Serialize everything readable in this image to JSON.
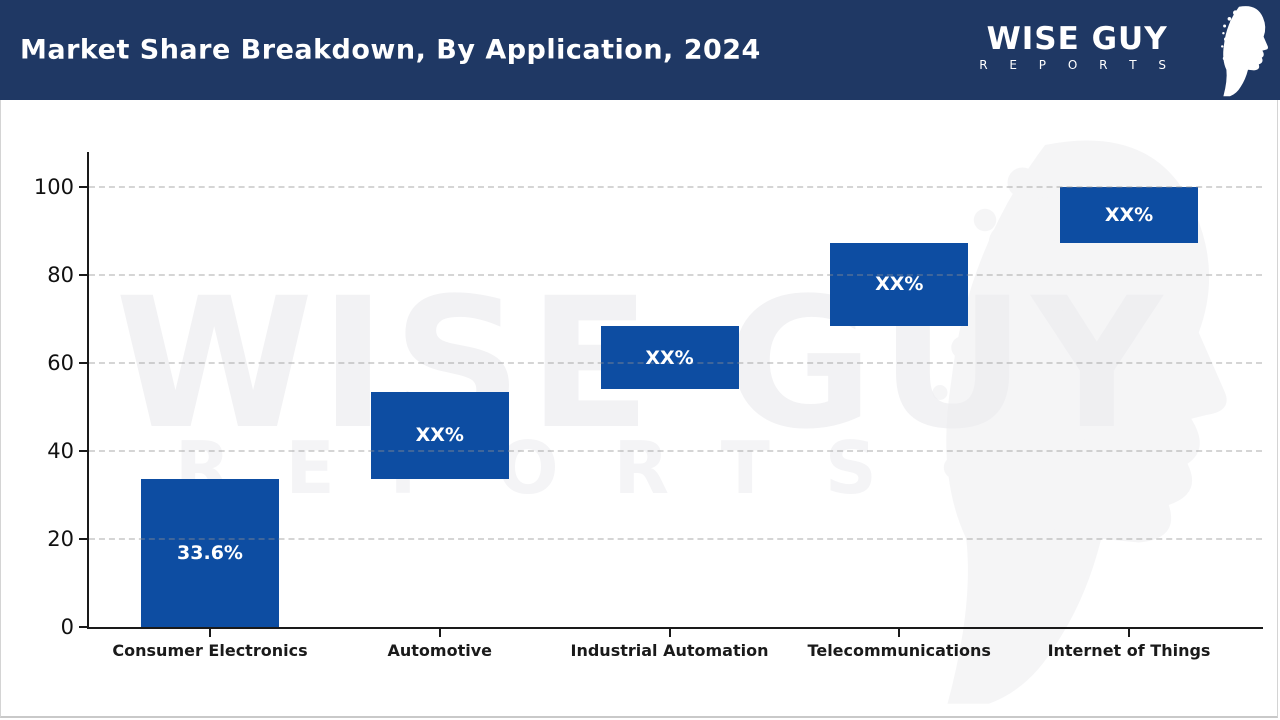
{
  "header": {
    "title": "Market Share Breakdown, By Application, 2024",
    "bg_color": "#1f3864",
    "logo": {
      "line1": "WISE GUY",
      "line2": "R E P O R T S"
    }
  },
  "watermark": {
    "line1": "WISE GUY",
    "line2": "REPORTS"
  },
  "chart_data": {
    "type": "bar",
    "subtype": "waterfall",
    "title": "Market Share Breakdown, By Application, 2024",
    "categories": [
      "Consumer Electronics",
      "Automotive",
      "Industrial Automation",
      "Telecommunications",
      "Internet of Things"
    ],
    "segments": [
      {
        "category": "Consumer Electronics",
        "start": 0,
        "end": 33.6,
        "label": "33.6%"
      },
      {
        "category": "Automotive",
        "start": 33.6,
        "end": 53.5,
        "label": "XX%"
      },
      {
        "category": "Industrial Automation",
        "start": 54.0,
        "end": 68.3,
        "label": "XX%"
      },
      {
        "category": "Telecommunications",
        "start": 68.5,
        "end": 87.2,
        "label": "XX%"
      },
      {
        "category": "Internet of Things",
        "start": 87.3,
        "end": 100,
        "label": "XX%"
      }
    ],
    "ylabel": "",
    "xlabel": "",
    "yticks": [
      0,
      20,
      40,
      60,
      80,
      100
    ],
    "ylim": [
      0,
      107
    ],
    "grid": "horizontal-dashed",
    "legend": "none",
    "bar_color": "#0d4da2",
    "bar_label_color": "#ffffff",
    "axis_color": "#1a1a1a"
  }
}
